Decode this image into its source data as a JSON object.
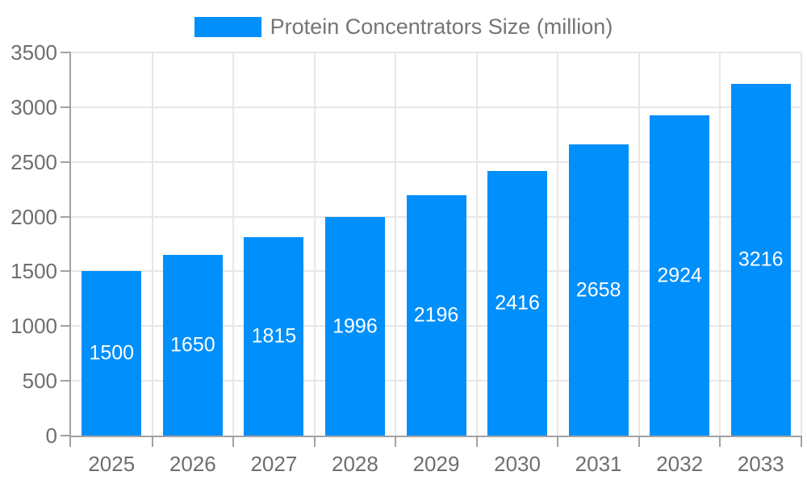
{
  "legend": {
    "label": "Protein Concentrators Size (million)"
  },
  "colors": {
    "bar": "#008FFB",
    "grid": "#e7e7e7",
    "axis": "#a2a2a2",
    "axis_label_text": "#6e6e6e",
    "legend_text": "#757575",
    "bar_label_text": "#ffffff",
    "background": "#ffffff"
  },
  "chart_data": {
    "type": "bar",
    "title": "Protein Concentrators Size (million)",
    "categories": [
      "2025",
      "2026",
      "2027",
      "2028",
      "2029",
      "2030",
      "2031",
      "2032",
      "2033"
    ],
    "values": [
      1500,
      1650,
      1815,
      1996,
      2196,
      2416,
      2658,
      2924,
      3216
    ],
    "series": [
      {
        "name": "Protein Concentrators Size (million)",
        "values": [
          1500,
          1650,
          1815,
          1996,
          2196,
          2416,
          2658,
          2924,
          3216
        ]
      }
    ],
    "xlabel": "",
    "ylabel": "",
    "ylim": [
      0,
      3500
    ],
    "yticks": [
      0,
      500,
      1000,
      1500,
      2000,
      2500,
      3000,
      3500
    ],
    "grid": "both",
    "legend_position": "top",
    "bar_labels_inside": true
  }
}
